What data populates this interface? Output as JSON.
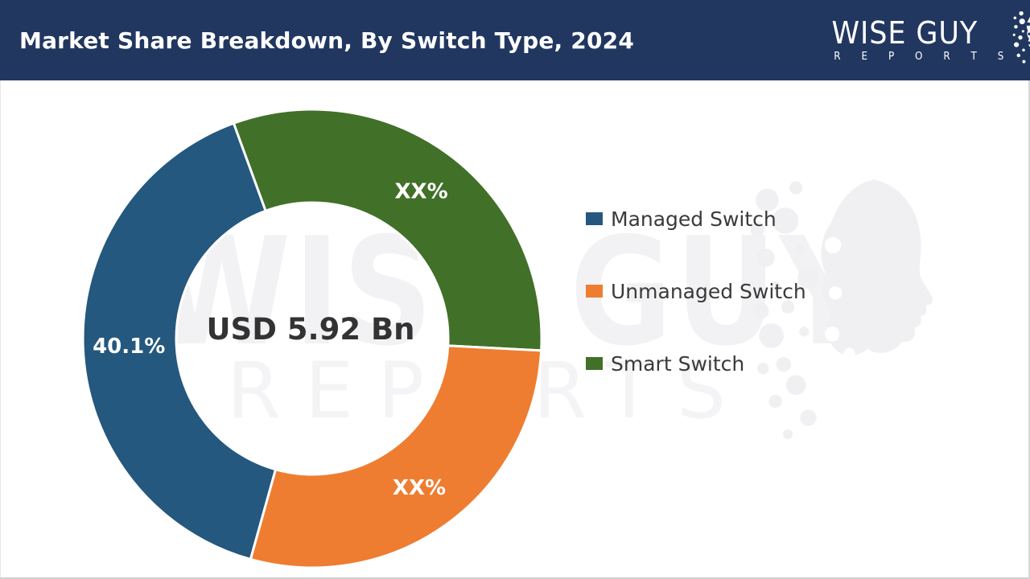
{
  "header": {
    "title": "Market Share Breakdown, By Switch Type, 2024",
    "bg_color": "#21375F",
    "logo": {
      "line1": "WISE GUY",
      "line2": "R E P O R T S"
    }
  },
  "watermark": {
    "line1": "WISE GUY",
    "line2": "REPORTS"
  },
  "chart_data": {
    "type": "pie",
    "title": "Market Share Breakdown, By Switch Type, 2024",
    "subtype": "donut",
    "center_label": "USD 5.92 Bn",
    "legend_position": "right",
    "inner_radius_ratio": 0.59,
    "start_angle_deg": -3,
    "direction": "counterclockwise",
    "draw_order": [
      2,
      0,
      1
    ],
    "segments": [
      {
        "name": "Managed Switch",
        "value": 40.1,
        "label": "40.1%",
        "color": "#24587E"
      },
      {
        "name": "Unmanaged Switch",
        "value": 28.5,
        "label": "XX%",
        "color": "#EE7D31"
      },
      {
        "name": "Smart Switch",
        "value": 31.4,
        "label": "XX%",
        "color": "#417029"
      }
    ]
  }
}
